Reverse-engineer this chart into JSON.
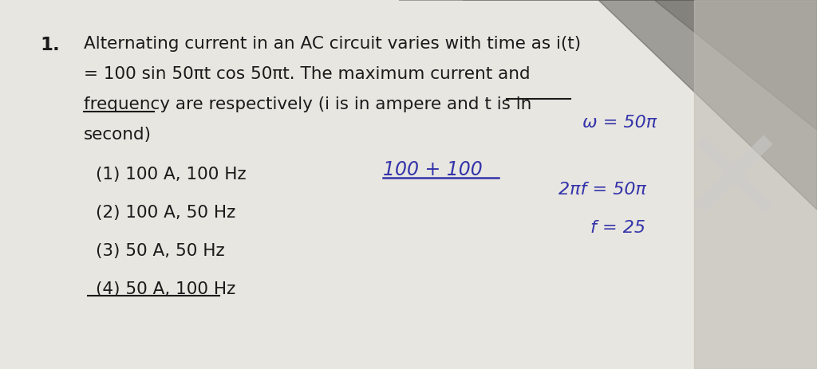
{
  "bg_color": "#d8d5cf",
  "paper_color": "#e8e6e0",
  "text_color": "#1a1a1a",
  "hw_color": "#3333aa",
  "shadow_top_color": "#888880",
  "question_number": "1.",
  "line1": "Alternating current in an AC circuit varies with time as i(t)",
  "line2": "= 100 sin 50πt cos 50πt. The maximum current and",
  "line3": "frequency are respectively (i is in ampere and t is in",
  "line4": "second)",
  "options": [
    "(1) 100 A, 100 Hz",
    "(2) 100 A, 50 Hz",
    "(3) 50 A, 50 Hz",
    "(4) 50 A, 100 Hz"
  ],
  "hw1": "100 + 100",
  "hw2": "ω = 50π",
  "hw3": "2πf = 50π",
  "hw4": "f = 25",
  "figsize": [
    10.24,
    4.63
  ],
  "dpi": 100
}
